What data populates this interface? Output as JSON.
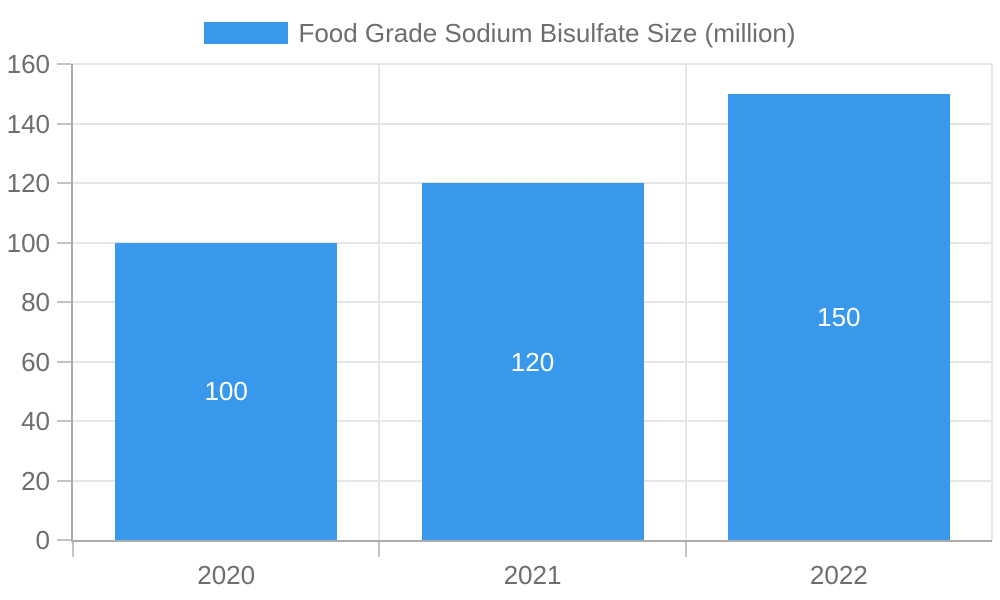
{
  "chart_data": {
    "type": "bar",
    "series_name": "Food Grade Sodium Bisulfate Size (million)",
    "categories": [
      "2020",
      "2021",
      "2022"
    ],
    "values": [
      100,
      120,
      150
    ],
    "ylim": [
      0,
      160
    ],
    "yticks": [
      0,
      20,
      40,
      60,
      80,
      100,
      120,
      140,
      160
    ],
    "grid": true,
    "legend_position": "top",
    "bar_value_labels_shown": true,
    "colors": {
      "bar": "#3899ec",
      "bar_label": "#ffffff",
      "axis_text": "#6e6e6e",
      "grid_line": "#e6e6e6",
      "axis_line": "#ababab",
      "tick_line": "#c2c2c2",
      "background": "#ffffff"
    }
  }
}
